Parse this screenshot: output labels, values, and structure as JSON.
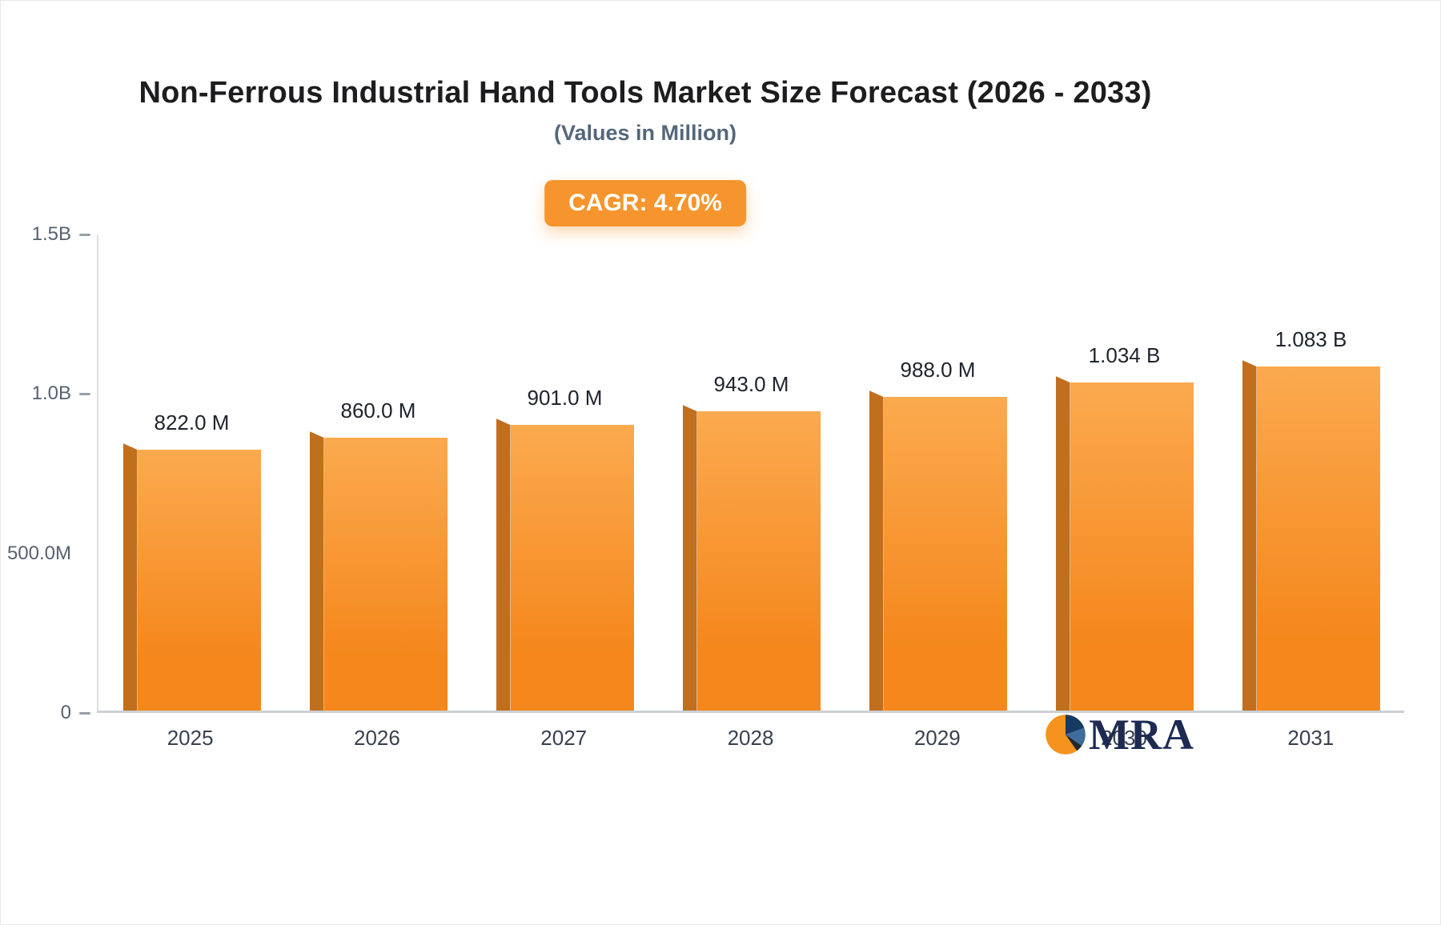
{
  "header": {
    "title": "Non-Ferrous Industrial Hand Tools Market Size Forecast (2026 - 2033)",
    "subtitle": "(Values in Million)",
    "cagr_badge": "CAGR: 4.70%"
  },
  "chart_data": {
    "type": "bar",
    "title": "Non-Ferrous Industrial Hand Tools Market Size Forecast (2026 - 2033)",
    "subtitle": "(Values in Million)",
    "cagr": "4.70%",
    "unit": "Million",
    "categories": [
      "2025",
      "2026",
      "2027",
      "2028",
      "2029",
      "2030",
      "2031"
    ],
    "values": [
      822,
      860,
      901,
      943,
      988,
      1034,
      1083
    ],
    "value_labels": [
      "822.0 M",
      "860.0 M",
      "901.0 M",
      "943.0 M",
      "988.0 M",
      "1.034 B",
      "1.083 B"
    ],
    "xlabel": "",
    "ylabel": "",
    "ylim": [
      0,
      1500
    ],
    "yticks": [
      {
        "value": 1500,
        "label": "1.5B",
        "dash": true
      },
      {
        "value": 1000,
        "label": "1.0B",
        "dash": true
      },
      {
        "value": 500,
        "label": "500.0M",
        "dash": false
      },
      {
        "value": 0,
        "label": "0",
        "dash": true
      }
    ],
    "grid": false,
    "legend": false,
    "colors": {
      "bar_top": "#fbaa4f",
      "bar_bottom": "#f5871c",
      "bar_side": "#c06f1e",
      "accent": "#f6952d",
      "label": "#20242c"
    }
  },
  "logo": {
    "text": "MRA",
    "colors": {
      "orange": "#f6921e",
      "navy": "#173a63",
      "blue": "#3e6c9c",
      "dark": "#20272e",
      "text": "#1d2a52"
    }
  }
}
